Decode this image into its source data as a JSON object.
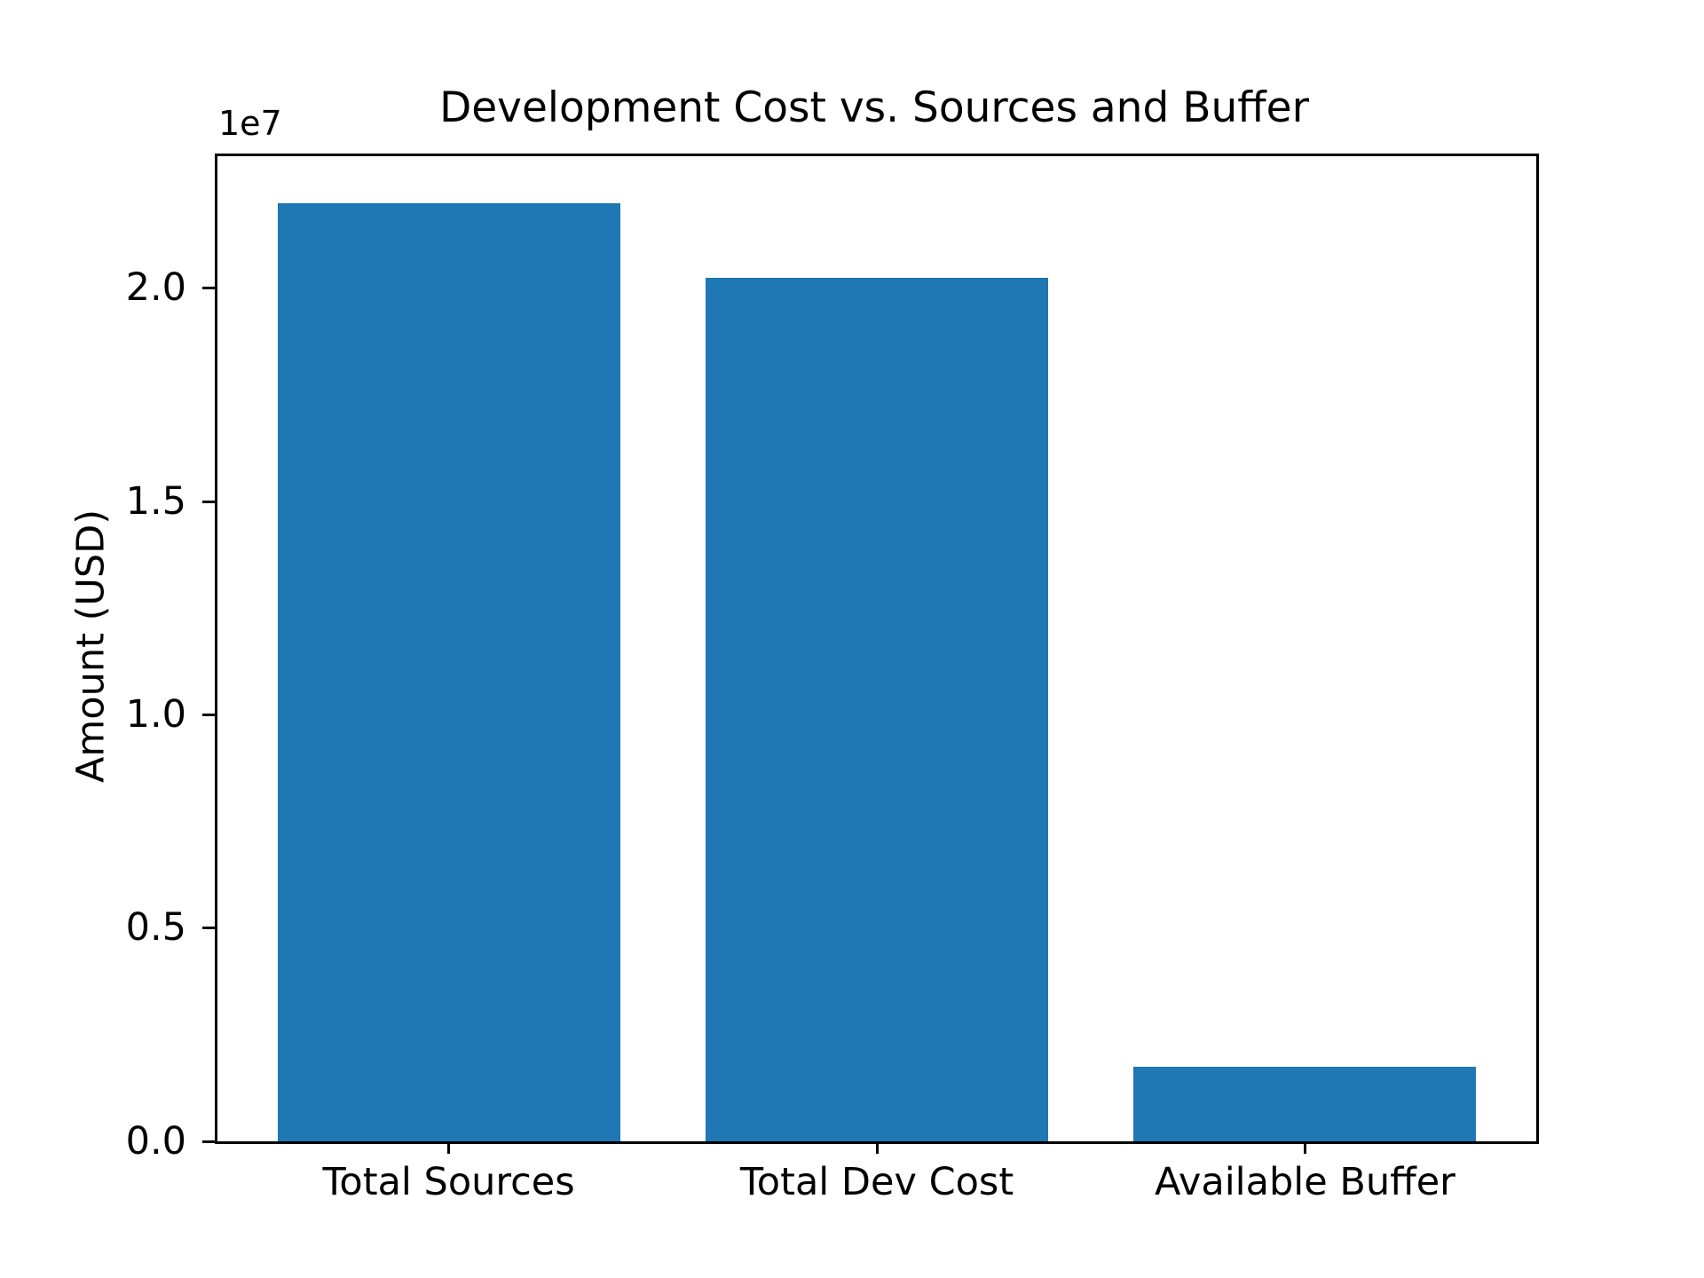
{
  "chart_data": {
    "type": "bar",
    "title": "Development Cost vs. Sources and Buffer",
    "categories": [
      "Total Sources",
      "Total Dev Cost",
      "Available Buffer"
    ],
    "values": [
      22000000,
      20250000,
      1750000
    ],
    "xlabel": "",
    "ylabel": "Amount (USD)",
    "ylim": [
      0,
      23100000
    ],
    "yticks": [
      0,
      5000000,
      10000000,
      15000000,
      20000000
    ],
    "ytick_labels": [
      "0.0",
      "0.5",
      "1.0",
      "1.5",
      "2.0"
    ],
    "y_offset_text": "1e7",
    "bar_color": "#1f77b4",
    "axis_color": "#000000",
    "text_color": "#000000",
    "grid": false,
    "legend": null
  }
}
